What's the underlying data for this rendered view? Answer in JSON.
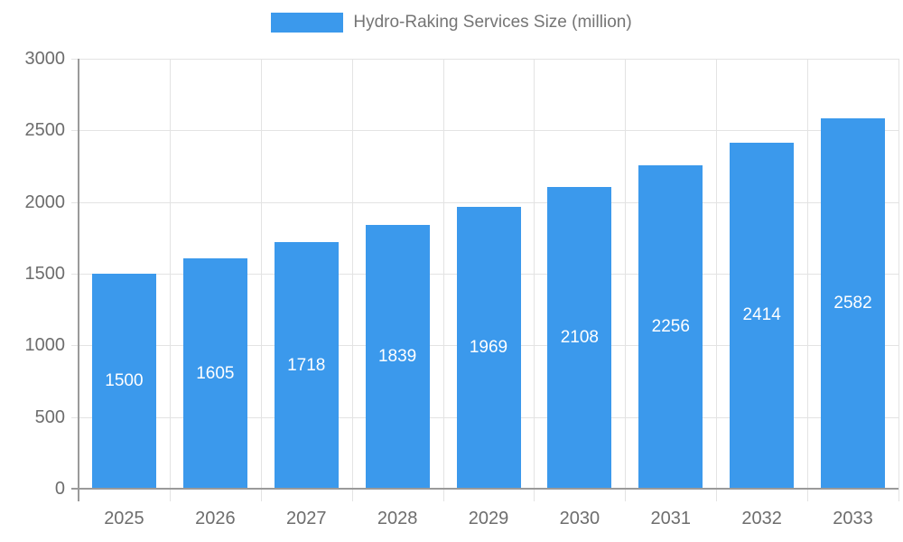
{
  "legend": {
    "label": "Hydro-Raking Services Size (million)",
    "swatch_color": "#3b99ec"
  },
  "chart_data": {
    "type": "bar",
    "title": "Hydro-Raking Services Size (million)",
    "categories": [
      "2025",
      "2026",
      "2027",
      "2028",
      "2029",
      "2030",
      "2031",
      "2032",
      "2033"
    ],
    "values": [
      1500,
      1605,
      1718,
      1839,
      1969,
      2108,
      2256,
      2414,
      2582
    ],
    "series": [
      {
        "name": "Hydro-Raking Services Size (million)",
        "values": [
          1500,
          1605,
          1718,
          1839,
          1969,
          2108,
          2256,
          2414,
          2582
        ]
      }
    ],
    "xlabel": "",
    "ylabel": "",
    "ylim": [
      0,
      3000
    ],
    "yticks": [
      0,
      500,
      1000,
      1500,
      2000,
      2500,
      3000
    ],
    "grid": true,
    "legend_position": "top",
    "bar_color": "#3b99ec",
    "value_label_color": "#ffffff"
  },
  "colors": {
    "bar": "#3b99ec",
    "axis_line": "#9a9a9a",
    "gridline": "#e3e3e3",
    "tick_text": "#6d6d6d",
    "legend_text": "#757575",
    "background": "#ffffff"
  }
}
